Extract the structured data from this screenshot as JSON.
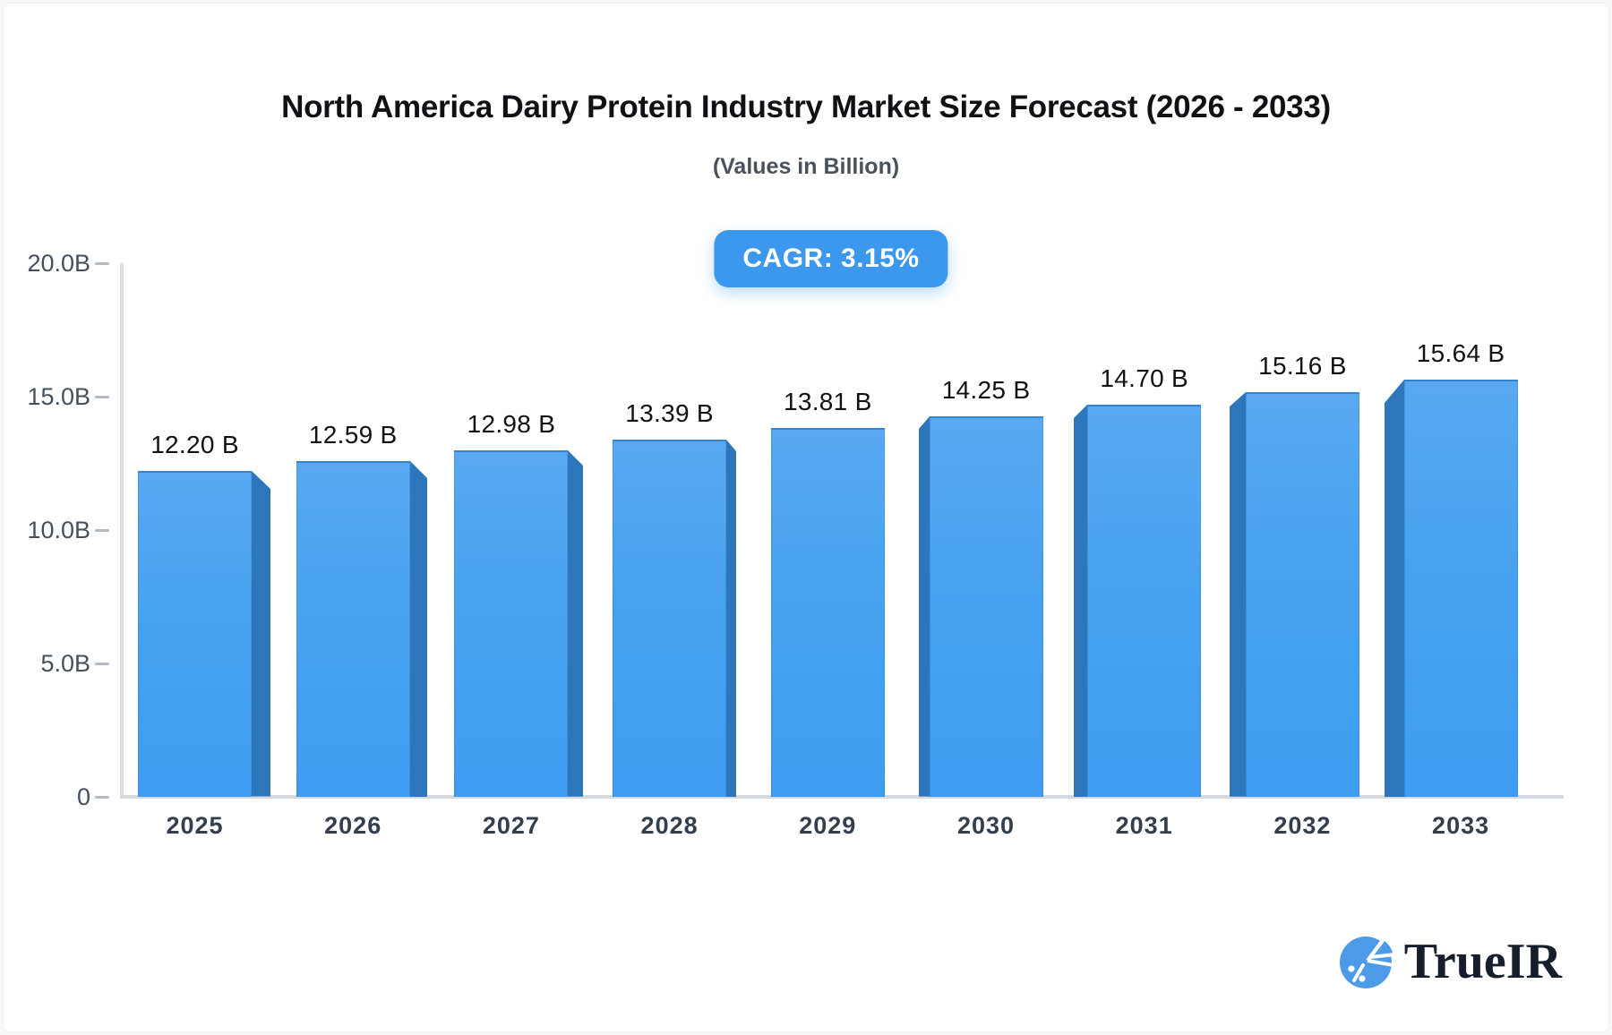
{
  "title": "North America Dairy Protein Industry Market Size Forecast (2026 - 2033)",
  "subtitle": "(Values in Billion)",
  "cagr_badge": "CAGR: 3.15%",
  "brand": {
    "name": "TrueIR"
  },
  "colors": {
    "accent": "#3b98ed",
    "bar_top": "#58a9f1",
    "bar_bottom": "#3e9df1",
    "bar_side": "#2e76bb",
    "axis_line": "#d5d9de",
    "tick_text": "#46505c",
    "x_label_text": "#333f4d"
  },
  "chart_data": {
    "type": "bar",
    "title": "North America Dairy Protein Industry Market Size Forecast (2026 - 2033)",
    "subtitle": "(Values in Billion)",
    "cagr": "3.15%",
    "categories": [
      "2025",
      "2026",
      "2027",
      "2028",
      "2029",
      "2030",
      "2031",
      "2032",
      "2033"
    ],
    "values": [
      12.2,
      12.59,
      12.98,
      13.39,
      13.81,
      14.25,
      14.7,
      15.16,
      15.64
    ],
    "bar_labels": [
      "12.20 B",
      "12.59 B",
      "12.98 B",
      "13.39 B",
      "13.81 B",
      "14.25 B",
      "14.70 B",
      "15.16 B",
      "15.64 B"
    ],
    "xlabel": "",
    "ylabel": "",
    "ylim": [
      0,
      20
    ],
    "grid": false,
    "legend": false,
    "yticks": [
      {
        "label": "20.0B",
        "value": 20
      },
      {
        "label": "15.0B",
        "value": 15
      },
      {
        "label": "10.0B",
        "value": 10
      },
      {
        "label": "5.0B",
        "value": 5
      },
      {
        "label": "0",
        "value": 0
      }
    ]
  }
}
